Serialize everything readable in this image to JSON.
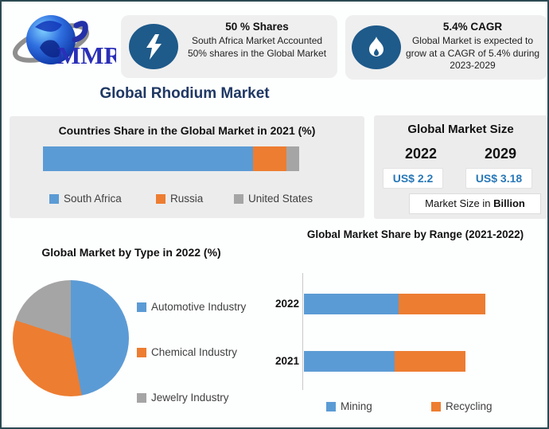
{
  "logo": {
    "text": "MMR"
  },
  "header": {
    "page_title": "Global Rhodium Market",
    "stat_boxes": [
      {
        "icon": "lightning-icon",
        "title": "50 % Shares",
        "body": "South Africa Market Accounted 50% shares in the Global Market"
      },
      {
        "icon": "flame-icon",
        "title": "5.4% CAGR",
        "body": "Global Market is expected to grow at a CAGR of 5.4% during 2023-2029"
      }
    ]
  },
  "market_size": {
    "title": "Global Market Size",
    "years": [
      "2022",
      "2029"
    ],
    "values": [
      "US$ 2.2",
      "US$ 3.18"
    ],
    "note_prefix": "Market Size in ",
    "note_bold": "Billion"
  },
  "colors": {
    "blue": "#5B9BD5",
    "orange": "#ED7D31",
    "gray": "#A5A5A5",
    "navy_title": "#1F3864",
    "icon_blue": "#1E5A8A",
    "value_blue": "#2878B8",
    "panel_gray": "#ECECEC",
    "border_teal": "#2C4A52"
  },
  "chart_data": [
    {
      "type": "bar",
      "subtype": "stacked-horizontal",
      "title": "Countries Share in the Global Market in 2021 (%)",
      "categories": [
        "2021"
      ],
      "series": [
        {
          "name": "South Africa",
          "color": "#5B9BD5",
          "values": [
            82
          ]
        },
        {
          "name": "Russia",
          "color": "#ED7D31",
          "values": [
            13
          ]
        },
        {
          "name": "United States",
          "color": "#A5A5A5",
          "values": [
            5
          ]
        }
      ],
      "legend_position": "bottom",
      "grid": false
    },
    {
      "type": "pie",
      "title": "Global Market by Type in 2022 (%)",
      "labels": [
        "Automotive Industry",
        "Chemical Industry",
        "Jewelry Industry"
      ],
      "values": [
        47,
        33,
        20
      ],
      "colors": [
        "#5B9BD5",
        "#ED7D31",
        "#A5A5A5"
      ],
      "legend_position": "right"
    },
    {
      "type": "bar",
      "subtype": "stacked-horizontal",
      "title": "Global Market Share by Range (2021-2022)",
      "categories": [
        "2022",
        "2021"
      ],
      "series": [
        {
          "name": "Mining",
          "color": "#5B9BD5",
          "values": [
            52,
            50
          ]
        },
        {
          "name": "Recycling",
          "color": "#ED7D31",
          "values": [
            48,
            39
          ]
        }
      ],
      "legend_position": "bottom",
      "grid": false
    }
  ]
}
